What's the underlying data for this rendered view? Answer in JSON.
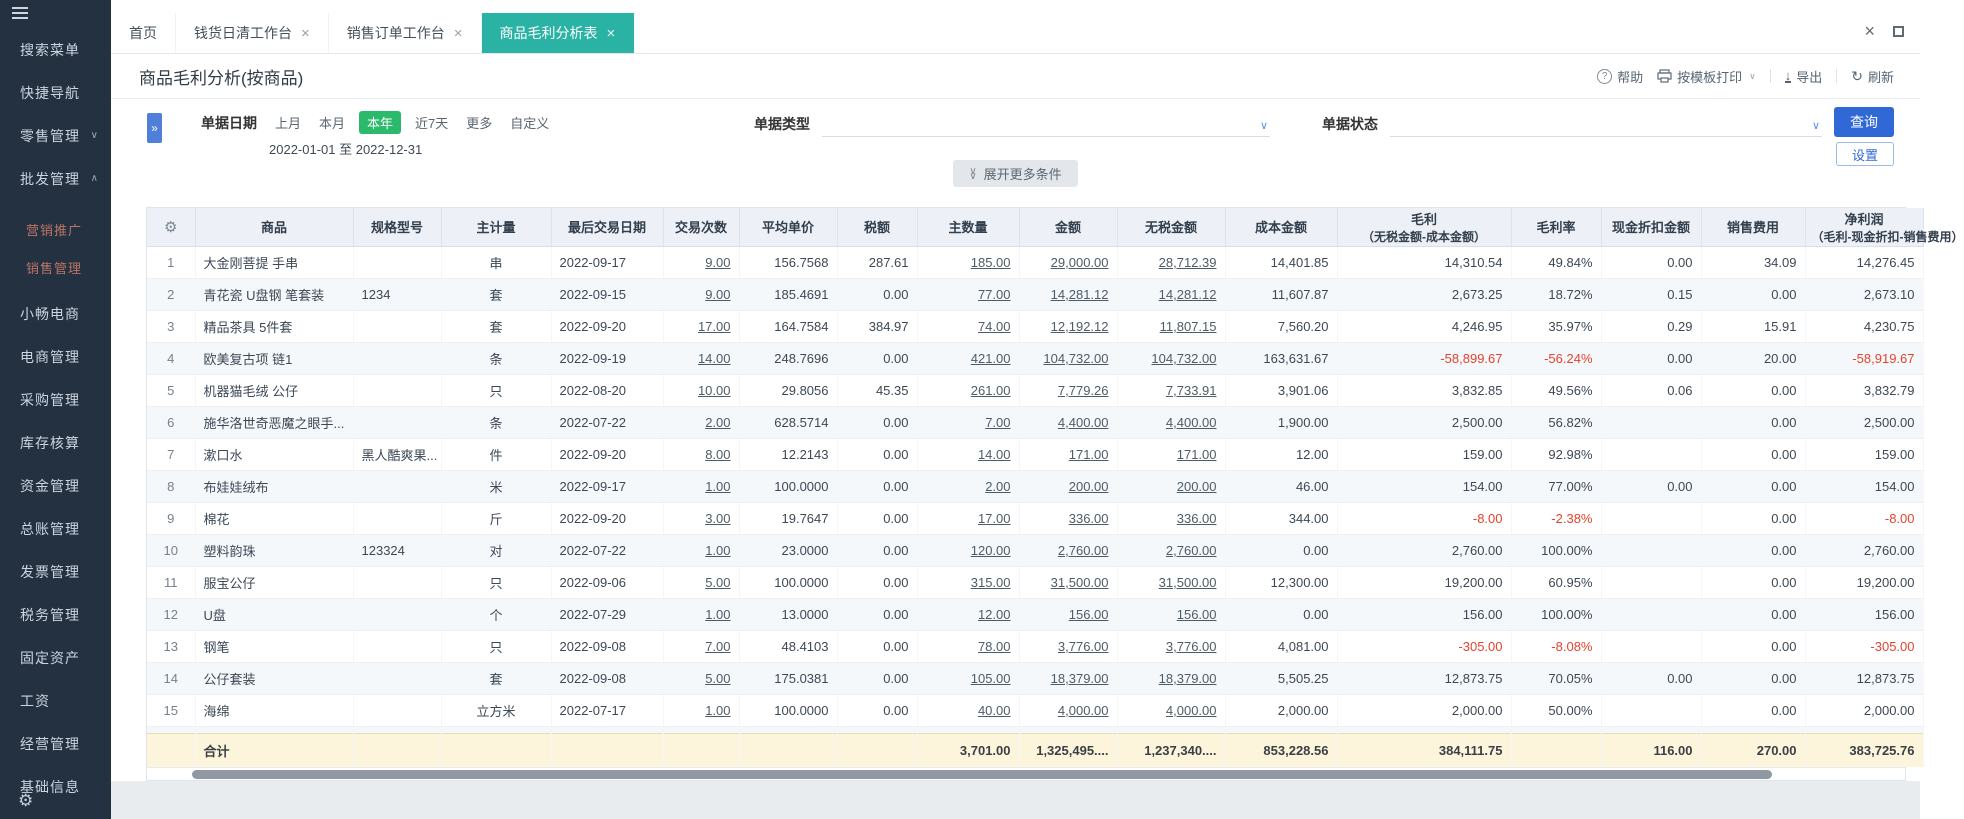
{
  "colors": {
    "accent_teal": "#2ab3a5",
    "primary_blue": "#3069d6",
    "success_green": "#2bb96b",
    "negative_red": "#e5432e",
    "total_row_bg": "#fcf5dc",
    "sidebar_bg": "#233140",
    "sidebar_submenu_text": "#bd7466",
    "link_gray": "#4e5b68"
  },
  "sidebar": {
    "items": [
      {
        "label": "搜索菜单",
        "type": "main"
      },
      {
        "label": "快捷导航",
        "type": "main"
      },
      {
        "label": "零售管理",
        "type": "main",
        "chevron": "down"
      },
      {
        "label": "批发管理",
        "type": "main",
        "chevron": "up"
      },
      {
        "label": "营销推广",
        "type": "sub"
      },
      {
        "label": "销售管理",
        "type": "sub"
      },
      {
        "label": "小畅电商",
        "type": "main"
      },
      {
        "label": "电商管理",
        "type": "main"
      },
      {
        "label": "采购管理",
        "type": "main"
      },
      {
        "label": "库存核算",
        "type": "main"
      },
      {
        "label": "资金管理",
        "type": "main"
      },
      {
        "label": "总账管理",
        "type": "main"
      },
      {
        "label": "发票管理",
        "type": "main"
      },
      {
        "label": "税务管理",
        "type": "main"
      },
      {
        "label": "固定资产",
        "type": "main"
      },
      {
        "label": "工资",
        "type": "main"
      },
      {
        "label": "经营管理",
        "type": "main"
      },
      {
        "label": "基础信息",
        "type": "main"
      }
    ]
  },
  "tabs": {
    "items": [
      {
        "label": "首页",
        "closable": false,
        "active": false
      },
      {
        "label": "钱货日清工作台",
        "closable": true,
        "active": false
      },
      {
        "label": "销售订单工作台",
        "closable": true,
        "active": false
      },
      {
        "label": "商品毛利分析表",
        "closable": true,
        "active": true
      }
    ]
  },
  "page": {
    "title": "商品毛利分析(按商品)",
    "actions": {
      "help": "帮助",
      "print": "按模板打印",
      "export": "导出",
      "refresh": "刷新"
    }
  },
  "filters": {
    "date_label": "单据日期",
    "date_options": [
      "上月",
      "本月",
      "本年",
      "近7天",
      "更多",
      "自定义"
    ],
    "date_active": "本年",
    "date_range": "2022-01-01 至 2022-12-31",
    "doc_type_label": "单据类型",
    "doc_status_label": "单据状态",
    "search_button": "查询",
    "settings_button": "设置",
    "expand_more": "展开更多条件"
  },
  "table": {
    "columns": [
      {
        "label": "商品"
      },
      {
        "label": "规格型号"
      },
      {
        "label": "主计量"
      },
      {
        "label": "最后交易日期"
      },
      {
        "label": "交易次数"
      },
      {
        "label": "平均单价"
      },
      {
        "label": "税额"
      },
      {
        "label": "主数量"
      },
      {
        "label": "金额"
      },
      {
        "label": "无税金额"
      },
      {
        "label": "成本金额"
      },
      {
        "label": "毛利",
        "sub": "（无税金额-成本金额）"
      },
      {
        "label": "毛利率"
      },
      {
        "label": "现金折扣金额"
      },
      {
        "label": "销售费用"
      },
      {
        "label": "净利润",
        "sub": "（毛利-现金折扣-销售费用）"
      }
    ],
    "rows": [
      [
        "1",
        "大金刚菩提 手串",
        "",
        "串",
        "2022-09-17",
        "9.00",
        "156.7568",
        "287.61",
        "185.00",
        "29,000.00",
        "28,712.39",
        "14,401.85",
        "14,310.54",
        "49.84%",
        "0.00",
        "34.09",
        "14,276.45"
      ],
      [
        "2",
        "青花瓷 U盘钢 笔套装",
        "1234",
        "套",
        "2022-09-15",
        "9.00",
        "185.4691",
        "0.00",
        "77.00",
        "14,281.12",
        "14,281.12",
        "11,607.87",
        "2,673.25",
        "18.72%",
        "0.15",
        "0.00",
        "2,673.10"
      ],
      [
        "3",
        "精品茶具 5件套",
        "",
        "套",
        "2022-09-20",
        "17.00",
        "164.7584",
        "384.97",
        "74.00",
        "12,192.12",
        "11,807.15",
        "7,560.20",
        "4,246.95",
        "35.97%",
        "0.29",
        "15.91",
        "4,230.75"
      ],
      [
        "4",
        "欧美复古项 链1",
        "",
        "条",
        "2022-09-19",
        "14.00",
        "248.7696",
        "0.00",
        "421.00",
        "104,732.00",
        "104,732.00",
        "163,631.67",
        "-58,899.67",
        "-56.24%",
        "0.00",
        "20.00",
        "-58,919.67"
      ],
      [
        "5",
        "机器猫毛绒 公仔",
        "",
        "只",
        "2022-08-20",
        "10.00",
        "29.8056",
        "45.35",
        "261.00",
        "7,779.26",
        "7,733.91",
        "3,901.06",
        "3,832.85",
        "49.56%",
        "0.06",
        "0.00",
        "3,832.79"
      ],
      [
        "6",
        "施华洛世奇恶魔之眼手...",
        "",
        "条",
        "2022-07-22",
        "2.00",
        "628.5714",
        "0.00",
        "7.00",
        "4,400.00",
        "4,400.00",
        "1,900.00",
        "2,500.00",
        "56.82%",
        "",
        "0.00",
        "2,500.00"
      ],
      [
        "7",
        "漱口水",
        "黑人酷爽果...",
        "件",
        "2022-09-20",
        "8.00",
        "12.2143",
        "0.00",
        "14.00",
        "171.00",
        "171.00",
        "12.00",
        "159.00",
        "92.98%",
        "",
        "0.00",
        "159.00"
      ],
      [
        "8",
        "布娃娃绒布",
        "",
        "米",
        "2022-09-17",
        "1.00",
        "100.0000",
        "0.00",
        "2.00",
        "200.00",
        "200.00",
        "46.00",
        "154.00",
        "77.00%",
        "0.00",
        "0.00",
        "154.00"
      ],
      [
        "9",
        "棉花",
        "",
        "斤",
        "2022-09-20",
        "3.00",
        "19.7647",
        "0.00",
        "17.00",
        "336.00",
        "336.00",
        "344.00",
        "-8.00",
        "-2.38%",
        "",
        "0.00",
        "-8.00"
      ],
      [
        "10",
        "塑料韵珠",
        "123324",
        "对",
        "2022-07-22",
        "1.00",
        "23.0000",
        "0.00",
        "120.00",
        "2,760.00",
        "2,760.00",
        "0.00",
        "2,760.00",
        "100.00%",
        "",
        "0.00",
        "2,760.00"
      ],
      [
        "11",
        "服宝公仔",
        "",
        "只",
        "2022-09-06",
        "5.00",
        "100.0000",
        "0.00",
        "315.00",
        "31,500.00",
        "31,500.00",
        "12,300.00",
        "19,200.00",
        "60.95%",
        "",
        "0.00",
        "19,200.00"
      ],
      [
        "12",
        "U盘",
        "",
        "个",
        "2022-07-29",
        "1.00",
        "13.0000",
        "0.00",
        "12.00",
        "156.00",
        "156.00",
        "0.00",
        "156.00",
        "100.00%",
        "",
        "0.00",
        "156.00"
      ],
      [
        "13",
        "钢笔",
        "",
        "只",
        "2022-09-08",
        "7.00",
        "48.4103",
        "0.00",
        "78.00",
        "3,776.00",
        "3,776.00",
        "4,081.00",
        "-305.00",
        "-8.08%",
        "",
        "0.00",
        "-305.00"
      ],
      [
        "14",
        "公仔套装",
        "",
        "套",
        "2022-09-08",
        "5.00",
        "175.0381",
        "0.00",
        "105.00",
        "18,379.00",
        "18,379.00",
        "5,505.25",
        "12,873.75",
        "70.05%",
        "0.00",
        "0.00",
        "12,873.75"
      ],
      [
        "15",
        "海绵",
        "",
        "立方米",
        "2022-07-17",
        "1.00",
        "100.0000",
        "0.00",
        "40.00",
        "4,000.00",
        "4,000.00",
        "2,000.00",
        "2,000.00",
        "50.00%",
        "",
        "0.00",
        "2,000.00"
      ]
    ],
    "total_row": [
      "",
      "合计",
      "",
      "",
      "",
      "",
      "",
      "",
      "3,701.00",
      "1,325,495....",
      "1,237,340....",
      "853,228.56",
      "384,111.75",
      "",
      "116.00",
      "270.00",
      "383,725.76"
    ]
  }
}
